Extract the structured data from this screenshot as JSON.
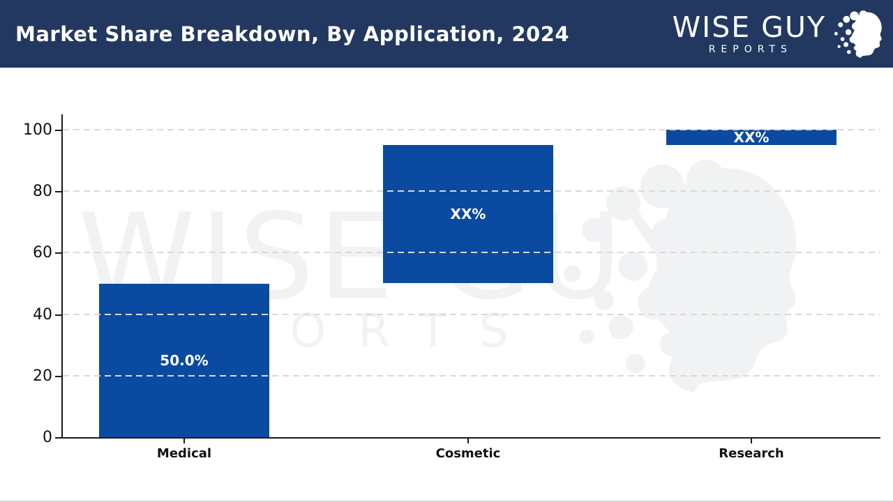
{
  "header": {
    "title": "Market Share Breakdown, By Application, 2024",
    "logo": {
      "line1": "WISE GUY",
      "line2": "REPORTS"
    }
  },
  "watermark": {
    "line1": "WISE GUY",
    "line2": "REPORTS"
  },
  "colors": {
    "header_bg": "#233861",
    "bar": "#0b4aa1",
    "grid": "#d9d9d9",
    "axis": "#1a1a1a",
    "watermark": "#f2f2f4",
    "bar_label": "#ffffff"
  },
  "chart_data": {
    "type": "bar",
    "subtype": "waterfall",
    "title": "Market Share Breakdown, By Application, 2024",
    "categories": [
      "Medical",
      "Cosmetic",
      "Research"
    ],
    "segments": [
      {
        "category": "Medical",
        "start": 0,
        "end": 50,
        "label": "50.0%"
      },
      {
        "category": "Cosmetic",
        "start": 50,
        "end": 95,
        "label": "XX%"
      },
      {
        "category": "Research",
        "start": 95,
        "end": 100,
        "label": "XX%"
      }
    ],
    "yticks": [
      0,
      20,
      40,
      60,
      80,
      100
    ],
    "ylim": [
      0,
      105
    ],
    "xlabel": "",
    "ylabel": "",
    "grid": "horizontal-dashed",
    "legend": "none"
  }
}
